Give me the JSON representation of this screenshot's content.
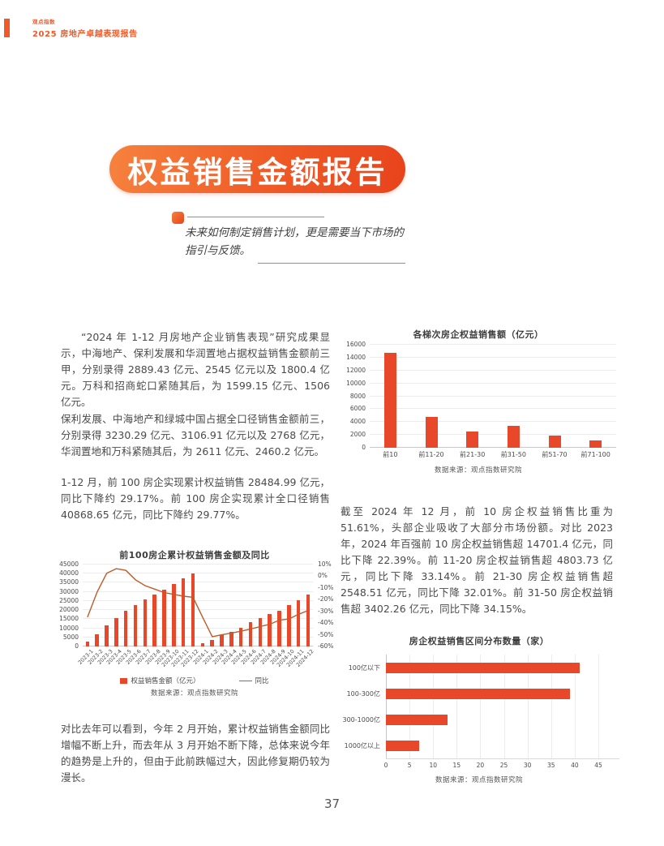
{
  "page": {
    "number": "37"
  },
  "header": {
    "brand": "观点指数",
    "report_title": "2025 房地产卓越表现报告"
  },
  "banner": {
    "title": "权益销售金额报告"
  },
  "quote": {
    "text": "未来如何制定销售计划，更是需要当下市场的指引与反馈。"
  },
  "paragraphs": {
    "p1": "“2024 年 1-12 月房地产企业销售表现”研究成果显示，中海地产、保利发展和华润置地占据权益销售金额前三甲，分别录得 2889.43 亿元、2545 亿元以及 1800.4 亿元。万科和招商蛇口紧随其后，为 1599.15 亿元、1506 亿元。",
    "p2": "保利发展、中海地产和绿城中国占据全口径销售金额前三，分别录得 3230.29 亿元、3106.91 亿元以及 2768 亿元，华润置地和万科紧随其后，为 2611 亿元、2460.2 亿元。",
    "p3": "1-12 月，前 100 房企实现累计权益销售 28484.99 亿元，同比下降约 29.17%。前 100 房企实现累计全口径销售 40868.65 亿元，同比下降约 29.77%。",
    "right": "截至 2024 年 12 月，前 10 房企权益销售比重为 51.61%，头部企业吸收了大部分市场份额。对比 2023 年，2024 年百强前 10 房企权益销售超 14701.4 亿元，同比下降 22.39%。前 11-20 房企权益销售超 4803.73 亿元，同比下降 33.14%。前 21-30 房企权益销售超 2548.51 亿元，同比下降 32.01%。前 31-50 房企权益销售超 3402.26 亿元，同比下降 34.15%。",
    "bottom": "对比去年可以看到，今年 2 月开始，累计权益销售金额同比增幅不断上升，而去年从 3 月开始不断下降，总体来说今年的趋势是上升的，但由于此前跌幅过大，因此修复期仍较为漫长。"
  },
  "colors": {
    "accent": "#F05A28",
    "bar": "#E8472A",
    "line": "#BF5B28",
    "banner_gradient_from": "#F6823E",
    "banner_gradient_to": "#E8431C",
    "grid": "#ECECEC",
    "axis": "#C9C9C9",
    "text_body": "#4A4A4A"
  },
  "chart_data": [
    {
      "id": "tier_equity_sales",
      "type": "bar",
      "title": "各梯次房企权益销售额（亿元）",
      "categories": [
        "前10",
        "前11-20",
        "前21-30",
        "前31-50",
        "前51-70",
        "前71-100"
      ],
      "values": [
        14701,
        4804,
        2549,
        3402,
        1850,
        1180
      ],
      "ylim": [
        0,
        16000
      ],
      "ytick_step": 2000,
      "grid": true,
      "source": "数据来源：观点指数研究院"
    },
    {
      "id": "top100_cumulative_equity_sales",
      "type": "bar+line",
      "title": "前100房企累计权益销售金额及同比",
      "categories": [
        "2023-1",
        "2023-2",
        "2023-3",
        "2023-4",
        "2023-5",
        "2023-6",
        "2023-7",
        "2023-8",
        "2023-9",
        "2023-10",
        "2023-11",
        "2023-12",
        "2024-1",
        "2024-2",
        "2024-3",
        "2024-4",
        "2024-5",
        "2024-6",
        "2024-7",
        "2024-8",
        "2024-9",
        "2024-10",
        "2024-11",
        "2024-12"
      ],
      "series": [
        {
          "name": "权益销售金额（亿元）",
          "type": "bar",
          "axis": "left",
          "values": [
            2900,
            6600,
            11500,
            15700,
            19600,
            22800,
            25700,
            28400,
            31300,
            34300,
            37500,
            40200,
            1900,
            3400,
            6100,
            8200,
            10400,
            13400,
            15600,
            17900,
            19700,
            22800,
            25500,
            28485
          ]
        },
        {
          "name": "同比",
          "type": "line",
          "axis": "right",
          "values": [
            -35,
            -13.5,
            2.5,
            6.5,
            5,
            -3,
            -8,
            -11,
            -14,
            -15.5,
            -17,
            -18,
            -35,
            -51.6,
            -50,
            -48.5,
            -47,
            -45,
            -43,
            -41,
            -37.5,
            -36.5,
            -32.5,
            -29.2
          ]
        }
      ],
      "left_ylim": [
        0,
        45000
      ],
      "left_tick_step": 5000,
      "right_ylim": [
        -60,
        10
      ],
      "right_tick_step": 10,
      "right_unit": "%",
      "grid": true,
      "legend_position": "bottom",
      "source": "数据来源：观点指数研究院"
    },
    {
      "id": "equity_sales_range_distribution",
      "type": "bar-horizontal",
      "title": "房企权益销售区间分布数量（家）",
      "categories": [
        "100亿以下",
        "100-300亿",
        "300-1000亿",
        "1000亿以上"
      ],
      "values": [
        41,
        39,
        13,
        7
      ],
      "xlim": [
        0,
        45
      ],
      "xtick_step": 5,
      "grid": true,
      "source": "数据来源：观点指数研究院"
    }
  ]
}
